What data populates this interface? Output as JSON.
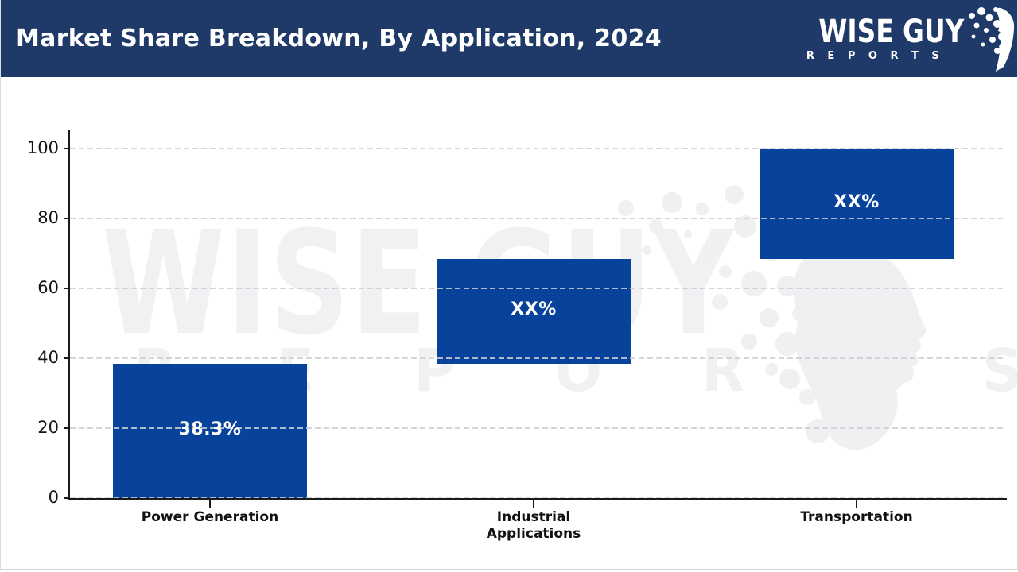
{
  "page": {
    "background": "#ffffff",
    "border_color": "#dcdcdc"
  },
  "header": {
    "background": "#1f3a68",
    "title": "Market Share Breakdown, By Application, 2024",
    "title_color": "#ffffff"
  },
  "logo": {
    "wordmark": "WISE GUY",
    "subtext": "R E P O R T S",
    "color": "#ffffff"
  },
  "watermark": {
    "wordmark": "WISE GUY",
    "subtext": "R E P O R T S",
    "color": "#f1f1f4"
  },
  "chart_data": {
    "type": "bar",
    "subtype": "waterfall",
    "title": "Market Share Breakdown, By Application, 2024",
    "categories": [
      "Power Generation",
      "Industrial Applications",
      "Transportation"
    ],
    "tick_labels": [
      "Power Generation",
      "Industrial\nApplications",
      "Transportation"
    ],
    "series": [
      {
        "name": "Market share (%)",
        "segments": [
          {
            "category": "Power Generation",
            "start": 0,
            "end": 38.3,
            "label": "38.3%"
          },
          {
            "category": "Industrial Applications",
            "start": 38.3,
            "end": 68.4,
            "label": "XX%"
          },
          {
            "category": "Transportation",
            "start": 68.4,
            "end": 100,
            "label": "XX%"
          }
        ]
      }
    ],
    "xlabel": "",
    "ylabel": "",
    "ylim": [
      0,
      105
    ],
    "yticks": [
      0,
      20,
      40,
      60,
      80,
      100
    ],
    "grid": "horizontal dashed, drawn over bars",
    "legend": null,
    "bar_color": "#08439b",
    "bar_label_color": "#ffffff",
    "axis_color": "#1a1a1a",
    "gridline_color": "#d6d6da"
  }
}
